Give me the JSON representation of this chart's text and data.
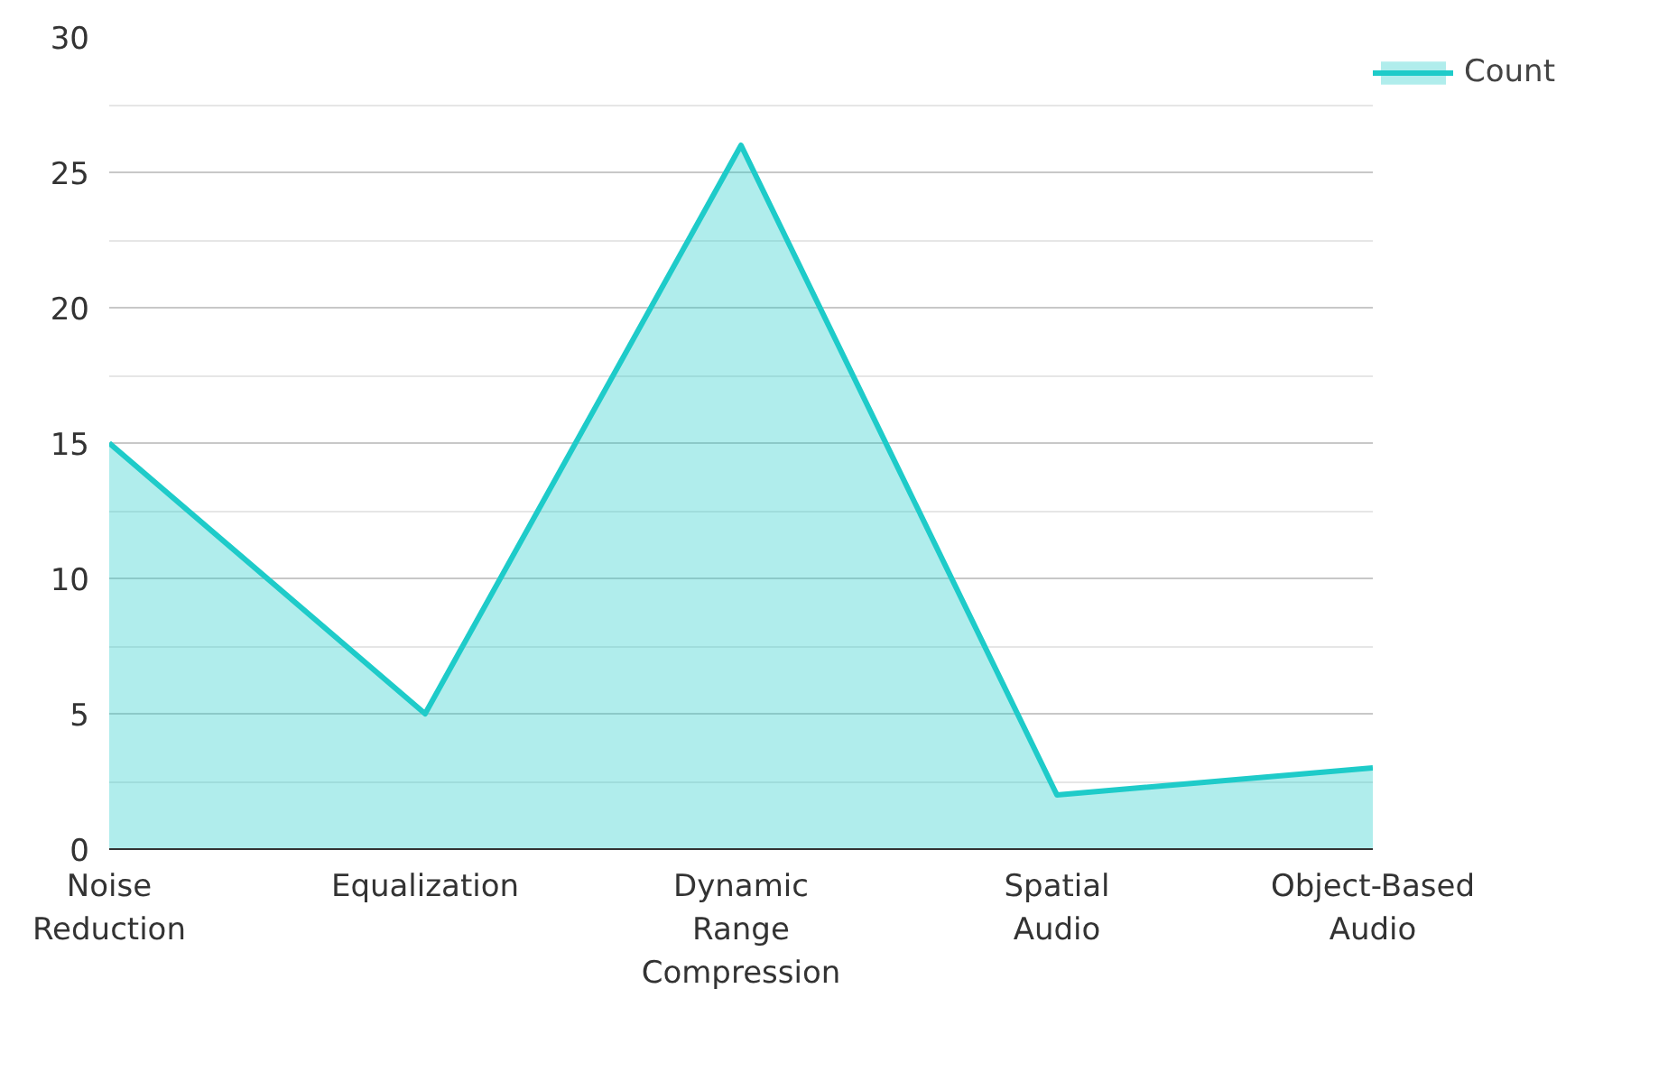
{
  "chart_data": {
    "type": "area",
    "categories": [
      "Noise Reduction",
      "Equalization",
      "Dynamic Range Compression",
      "Spatial Audio",
      "Object-Based Audio"
    ],
    "series": [
      {
        "name": "Count",
        "color": "#1ecbc9",
        "values": [
          15,
          5,
          26,
          2,
          3
        ]
      }
    ],
    "ylim": [
      0,
      30
    ],
    "yticks": [
      0,
      5,
      10,
      15,
      20,
      25,
      30
    ],
    "grid": "y",
    "legend": "top right"
  }
}
